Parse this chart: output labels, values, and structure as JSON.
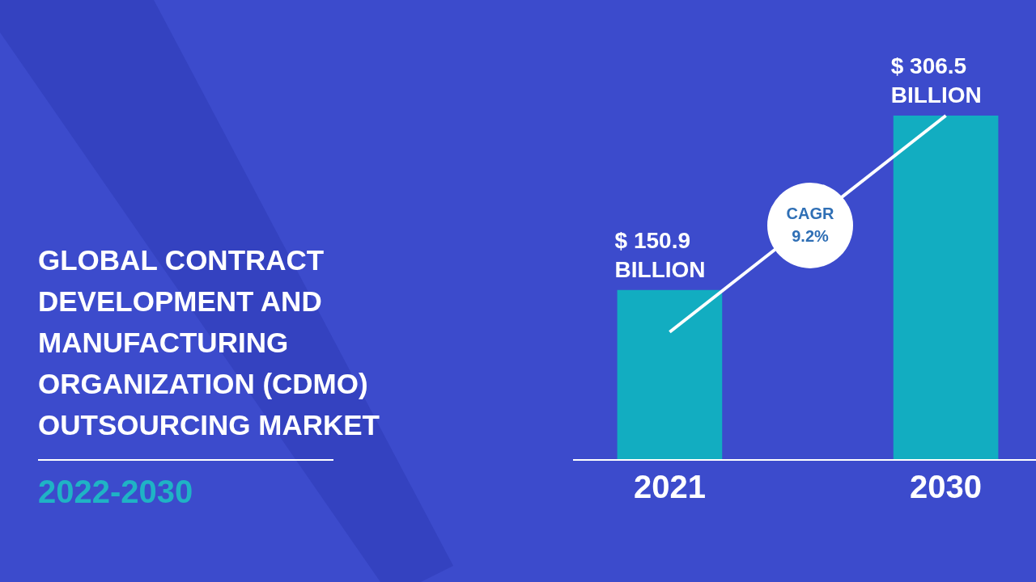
{
  "chart_data": {
    "type": "bar",
    "title": "GLOBAL CONTRACT DEVELOPMENT AND MANUFACTURING ORGANIZATION (CDMO) OUTSOURCING MARKET",
    "subtitle": "2022-2030",
    "categories": [
      "2021",
      "2030"
    ],
    "values": [
      150.9,
      306.5
    ],
    "color": "#12adc1",
    "value_labels": [
      "$ 150.9 BILLION",
      "$ 306.5 BILLION"
    ],
    "annotations": [
      "CAGR 9.2%"
    ]
  }
}
